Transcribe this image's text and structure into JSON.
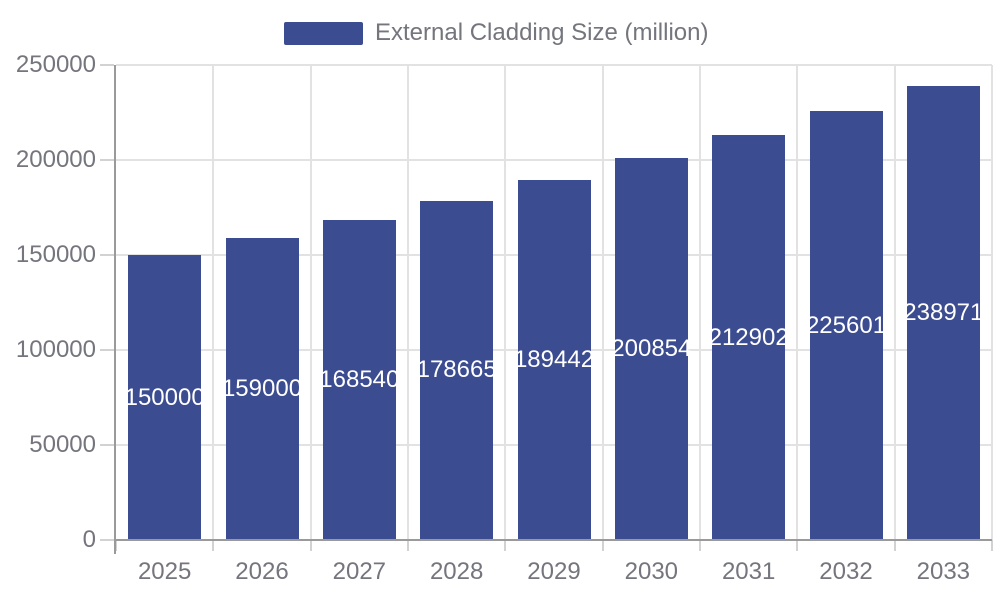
{
  "legend": {
    "label": "External Cladding Size (million)"
  },
  "chart_data": {
    "type": "bar",
    "title": "External Cladding Size (million)",
    "categories": [
      "2025",
      "2026",
      "2027",
      "2028",
      "2029",
      "2030",
      "2031",
      "2032",
      "2033"
    ],
    "series": [
      {
        "name": "External Cladding Size (million)",
        "values": [
          150000,
          159000,
          168540,
          178665,
          189442,
          200854,
          212902,
          225601,
          238971
        ]
      }
    ],
    "bar_value_labels": [
      "150000",
      "159000",
      "168540",
      "178665",
      "189442",
      "200854",
      "212902",
      "225601",
      "238971"
    ],
    "xlabel": "",
    "ylabel": "",
    "ylim": [
      0,
      250000
    ],
    "y_ticks": [
      0,
      50000,
      100000,
      150000,
      200000,
      250000
    ],
    "y_tick_labels": [
      "0",
      "50000",
      "100000",
      "150000",
      "200000",
      "250000"
    ],
    "grid": true,
    "legend_position": "top-center",
    "colors": {
      "bar": "#3C4C90",
      "bar_label": "#FFFFFF",
      "axis_text": "#74757D",
      "axis_line": "#9A9A9A",
      "tick_mark": "#D2D2D2",
      "gridline": "#E2E2E2",
      "background": "#FFFFFF"
    }
  }
}
